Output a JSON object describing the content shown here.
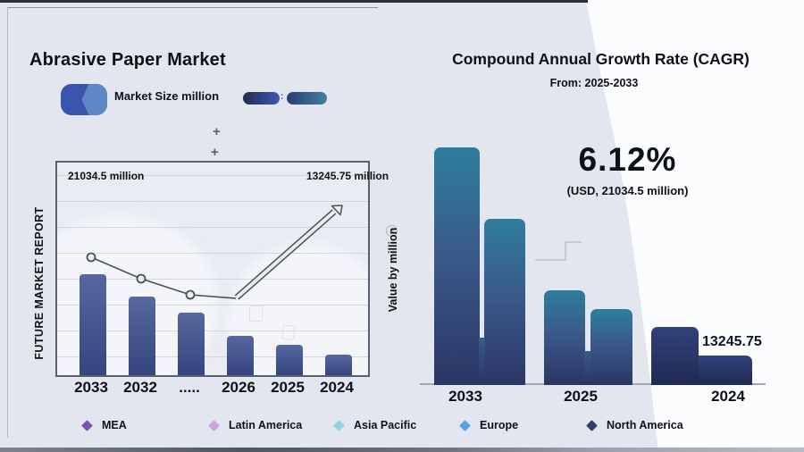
{
  "header": {
    "title": "Abrasive Paper Market",
    "series_label": "Market Size million",
    "ratio_colon": ":",
    "plus_mark": "+"
  },
  "left_chart": {
    "left_value": "21034.5 million",
    "right_value": "13245.75 million",
    "side_label": "FUTURE MARKET REPORT",
    "categories": [
      "2033",
      "2032",
      ".....",
      "2026",
      "2025",
      "2024"
    ]
  },
  "right_chart": {
    "title": "Compound Annual Growth Rate (CAGR)",
    "subtitle": "From: 2025-2033",
    "cagr": "6.12%",
    "note": "(USD, 21034.5 million)",
    "value_label": "13245.75",
    "ylabel": "Value by million",
    "categories": [
      "2033",
      "2025",
      "2024"
    ]
  },
  "legend": {
    "items": [
      {
        "label": "MEA",
        "color": "#7a52b0"
      },
      {
        "label": "Latin America",
        "color": "#cfa3d8"
      },
      {
        "label": "Asia Pacific",
        "color": "#8fd2e2"
      },
      {
        "label": "Europe",
        "color": "#54a3e4"
      },
      {
        "label": "North America",
        "color": "#2e3f6e"
      }
    ]
  },
  "colors": {
    "background": "#e3e6ee",
    "swoosh_white": "#fbfcfe",
    "left_bar_top": "#56689f",
    "left_bar_bottom": "#35457f",
    "right_bar_teal_top": "#2e7e9d",
    "right_bar_mid": "#3a5a8a",
    "right_bar_navy_bottom": "#2b3565",
    "right_bar_royal_top": "#32427e",
    "right_bar_deep_bottom": "#1f2a52",
    "trend_line": "#4b505a"
  },
  "chart_data": [
    {
      "type": "bar",
      "title": "Abrasive Paper Market",
      "series_label": "Market Size million",
      "categories": [
        "2033",
        "2032",
        ".....",
        "2026",
        "2025",
        "2024"
      ],
      "relative_heights": [
        1.0,
        0.78,
        0.62,
        0.39,
        0.3,
        0.2
      ],
      "annotations": [
        "21034.5 million",
        "13245.75 million"
      ],
      "trend": "marker line declining from 2033 to 2026 with upward outlined growth arrow",
      "ylabel": "FUTURE MARKET REPORT",
      "grid": true
    },
    {
      "type": "bar",
      "title": "Compound Annual Growth Rate (CAGR)",
      "subtitle": "From: 2025-2033",
      "cagr": "6.12%",
      "note": "(USD, 21034.5 million)",
      "categories": [
        "2033",
        "2025",
        "2024"
      ],
      "series": [
        {
          "name": "primary",
          "relative_heights": [
            1.0,
            0.4,
            0.245
          ]
        },
        {
          "name": "secondary",
          "relative_heights": [
            0.7,
            0.32,
            0.124
          ]
        }
      ],
      "value_label": {
        "text": "13245.75",
        "category": "2024"
      },
      "ylabel": "Value by million",
      "grid": false
    }
  ]
}
